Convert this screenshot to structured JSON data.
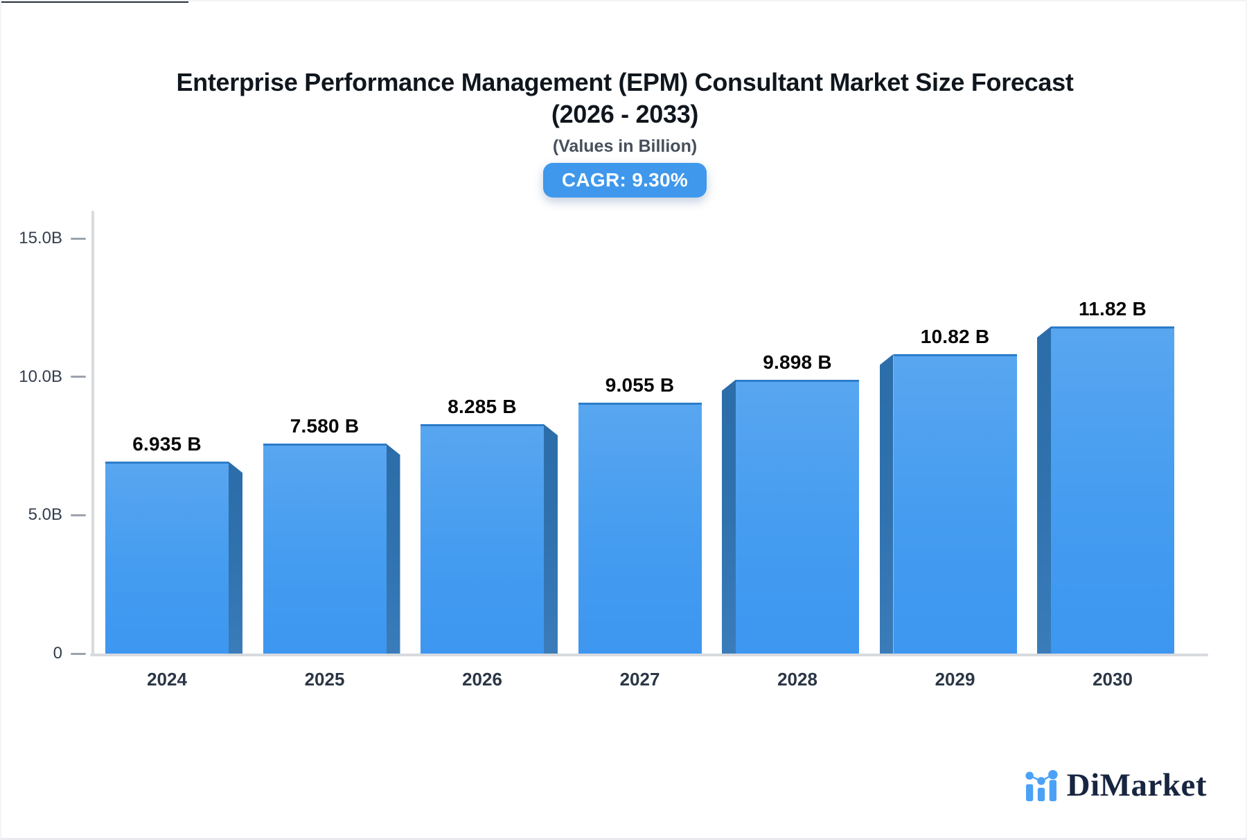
{
  "header": {
    "title_line1": "Enterprise Performance Management (EPM) Consultant Market Size Forecast",
    "title_line2": "(2026 - 2033)",
    "subtitle": "(Values in Billion)",
    "badge_label": "CAGR: 9.30%"
  },
  "chart_data": {
    "type": "bar",
    "title": "Enterprise Performance Management (EPM) Consultant Market Size Forecast (2026 - 2033)",
    "subtitle": "(Values in Billion)",
    "annotation": "CAGR: 9.30%",
    "categories": [
      "2024",
      "2025",
      "2026",
      "2027",
      "2028",
      "2029",
      "2030"
    ],
    "values": [
      6.935,
      7.58,
      8.285,
      9.055,
      9.898,
      10.82,
      11.82
    ],
    "value_labels": [
      "6.935 B",
      "7.580 B",
      "8.285 B",
      "9.055 B",
      "9.898 B",
      "10.82 B",
      "11.82 B"
    ],
    "xlabel": "",
    "ylabel": "",
    "ylim": [
      0,
      15
    ],
    "yticks": [
      {
        "value": 0,
        "label": "0"
      },
      {
        "value": 5,
        "label": "5.0B"
      },
      {
        "value": 10,
        "label": "10.0B"
      },
      {
        "value": 15,
        "label": "15.0B"
      }
    ],
    "grid": false,
    "legend": "none",
    "bar_color": "#459CF0",
    "bar_side_color": "#2F72AE",
    "axis_color": "#D8DBDF"
  },
  "footer": {
    "logo_text": "DiMarket",
    "logo_icon": "bar-chart-logo-icon",
    "logo_color": "#4BA1F6"
  }
}
